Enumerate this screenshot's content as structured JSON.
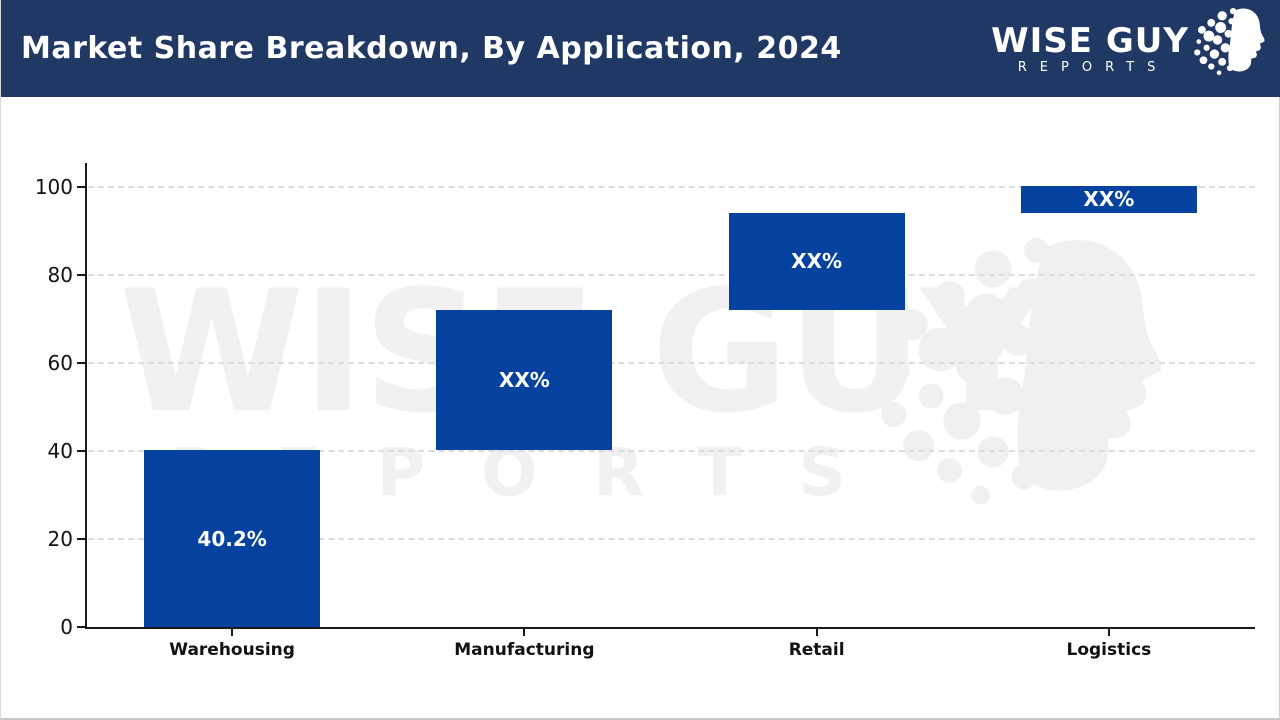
{
  "header": {
    "title": "Market Share Breakdown, By Application, 2024",
    "bg_color": "#1f3864",
    "logo": {
      "line1": "WISE GUY",
      "line2": "REPORTS"
    }
  },
  "watermark": {
    "line1": "WISE GUY",
    "line2": "REPORTS"
  },
  "chart_data": {
    "type": "bar",
    "subtype": "waterfall",
    "categories": [
      "Warehousing",
      "Manufacturing",
      "Retail",
      "Logistics"
    ],
    "segments": [
      {
        "category": "Warehousing",
        "label": "40.2%",
        "start": 0,
        "end": 40.2
      },
      {
        "category": "Manufacturing",
        "label": "XX%",
        "start": 40.2,
        "end": 72.1
      },
      {
        "category": "Retail",
        "label": "XX%",
        "start": 72.1,
        "end": 94.1
      },
      {
        "category": "Logistics",
        "label": "XX%",
        "start": 94.1,
        "end": 100.3
      }
    ],
    "y_ticks": [
      0,
      20,
      40,
      60,
      80,
      100
    ],
    "ylim": [
      0,
      105
    ],
    "grid": "horizontal-dashed",
    "bar_color": "#05419e",
    "label_color": "#ffffff",
    "axis_color": "#1a1a1a",
    "gridline_color": "#dcdcdc"
  }
}
